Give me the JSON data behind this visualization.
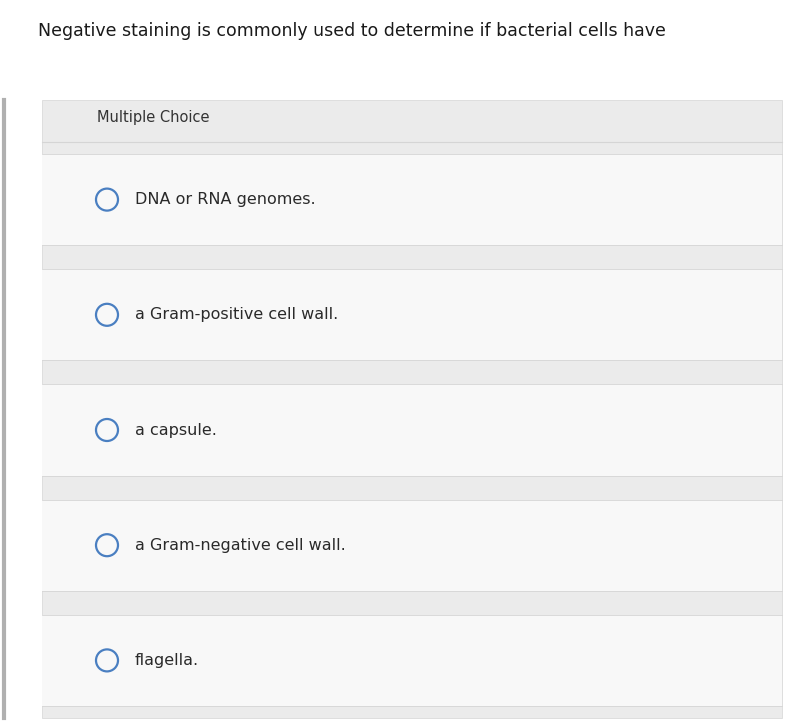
{
  "title": "Negative staining is commonly used to determine if bacterial cells have",
  "title_fontsize": 12.5,
  "title_color": "#1a1a1a",
  "section_label": "Multiple Choice",
  "section_label_fontsize": 10.5,
  "section_label_color": "#333333",
  "background_color": "#ffffff",
  "outer_box_color": "#ebebeb",
  "white_row_color": "#f8f8f8",
  "separator_color": "#d5d5d5",
  "circle_edge_color": "#4a7fc1",
  "circle_face_color": "#f8f8f8",
  "circle_linewidth": 1.6,
  "text_color": "#2a2a2a",
  "text_fontsize": 11.5,
  "choices": [
    "DNA or RNA genomes.",
    "a Gram-positive cell wall.",
    "a capsule.",
    "a Gram-negative cell wall.",
    "flagella."
  ],
  "figsize": [
    7.9,
    7.26
  ],
  "dpi": 100
}
